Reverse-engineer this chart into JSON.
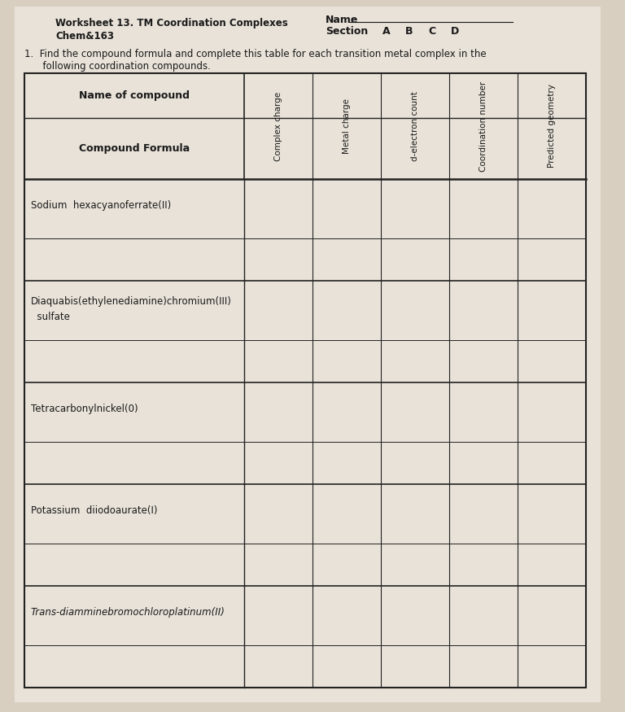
{
  "title_line1": "Worksheet 13. TM Coordination Complexes",
  "title_line2": "Chem&163",
  "name_label": "Name",
  "section_label": "Section",
  "section_letters": [
    "A",
    "B",
    "C",
    "D"
  ],
  "instruction": "1.  Find the compound formula and complete this table for each transition metal complex in the\n      following coordination compounds.",
  "header_row1": "Name of compound",
  "header_row2": "Compound Formula",
  "col_headers": [
    "Complex charge",
    "Metal charge",
    "d-electron count",
    "Coordination number",
    "Predicted geometry"
  ],
  "compounds": [
    "Sodium  hexacyanoferrate(II)",
    "Diaquabis(ethylenediamine)chromium(III)\n  sulfate",
    "Tetracarbonylnickel(0)",
    "Potassium  diiodoaurate(I)",
    "Trans-diamminebromochloroplatinum(II)"
  ],
  "compound_italic": [
    false,
    false,
    false,
    false,
    true
  ],
  "bg_color": "#d8cfc0",
  "paper_color": "#e8e2d8",
  "table_bg": "#ddd8cc",
  "line_color": "#222222",
  "text_color": "#1a1a1a"
}
